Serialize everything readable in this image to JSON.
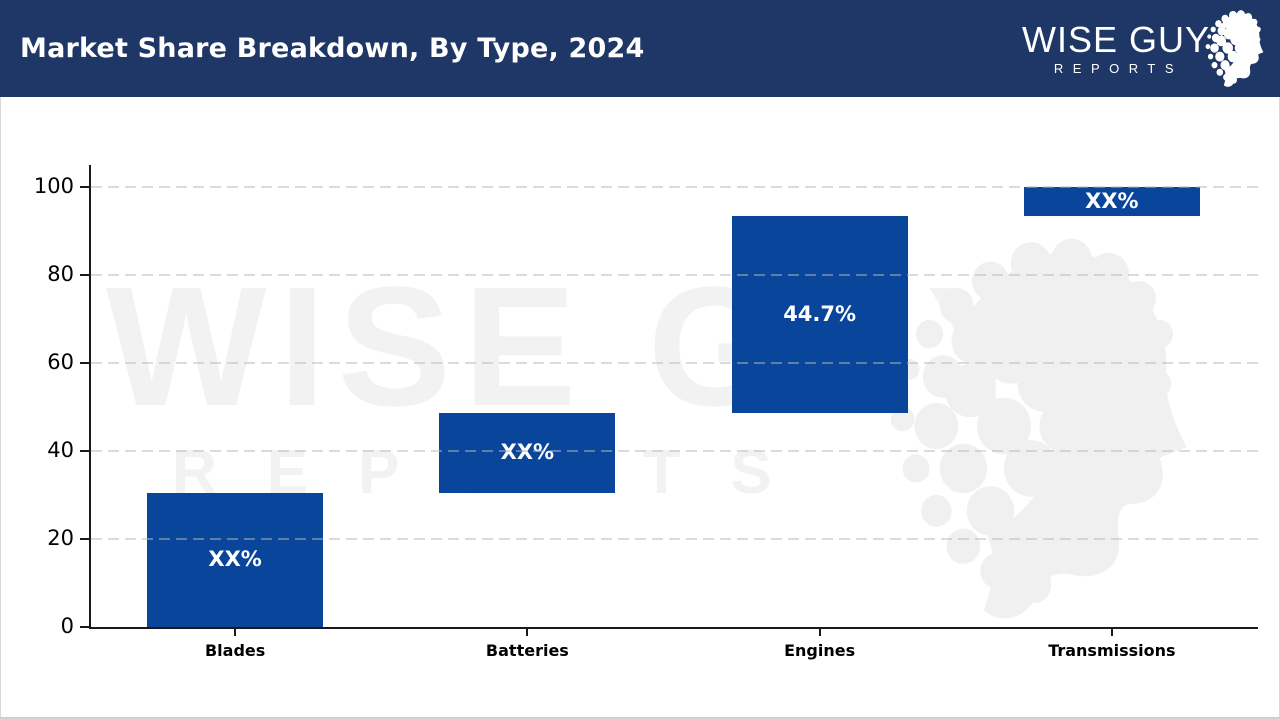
{
  "header": {
    "title": "Market Share Breakdown, By Type, 2024",
    "background_color": "#1f3766",
    "logo": {
      "wordmark": "WISE GUY",
      "subtext": "REPORTS",
      "head_icon": "dotted-head-profile"
    }
  },
  "watermark": {
    "wordmark": "WISE GUY",
    "subtext": "REPORTS"
  },
  "chart_data": {
    "type": "bar",
    "variant": "waterfall",
    "title": "Market Share Breakdown, By Type, 2024",
    "categories": [
      "Blades",
      "Batteries",
      "Engines",
      "Transmissions"
    ],
    "segments": [
      {
        "category": "Blades",
        "start": 0,
        "end": 30.5,
        "value": 30.5,
        "value_label": "XX%"
      },
      {
        "category": "Batteries",
        "start": 30.5,
        "end": 48.6,
        "value": 18.1,
        "value_label": "XX%"
      },
      {
        "category": "Engines",
        "start": 48.6,
        "end": 93.3,
        "value": 44.7,
        "value_label": "44.7%"
      },
      {
        "category": "Transmissions",
        "start": 93.3,
        "end": 100,
        "value": 6.7,
        "value_label": "XX%"
      }
    ],
    "xlabel": "",
    "ylabel": "",
    "ylim": [
      0,
      105
    ],
    "yticks": [
      0,
      20,
      40,
      60,
      80,
      100
    ],
    "grid": "horizontal-dashed",
    "legend": "none",
    "bar_color": "#09459a",
    "bar_label_color": "#ffffff",
    "axis_color": "#1a1a1a",
    "gridline_color": "#e3e3e3"
  }
}
